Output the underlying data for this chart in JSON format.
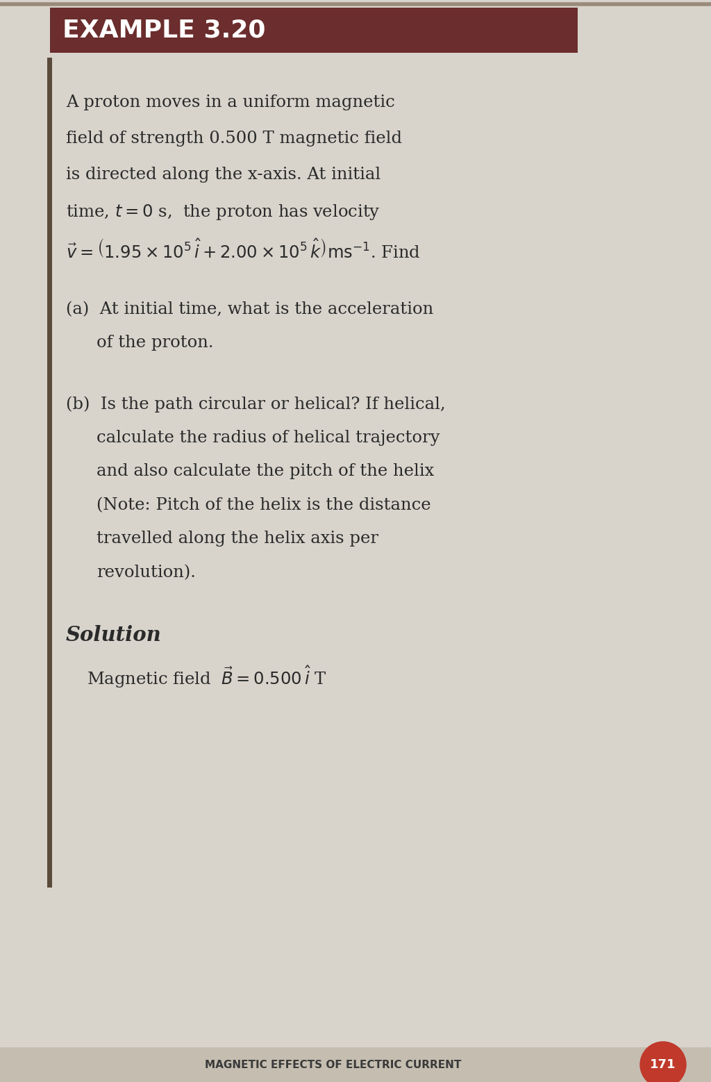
{
  "title": "EXAMPLE 3.20",
  "title_bg_color": "#6B2D2D",
  "title_text_color": "#FFFFFF",
  "page_bg_color": "#D8D4CC",
  "text_color": "#2A2A2A",
  "left_bar_color": "#5A4A3A",
  "page_number": "171",
  "page_number_bg": "#C0392B",
  "footer_text": "MAGNETIC EFFECTS OF ELECTRIC CURRENT",
  "solution_label": "Solution"
}
